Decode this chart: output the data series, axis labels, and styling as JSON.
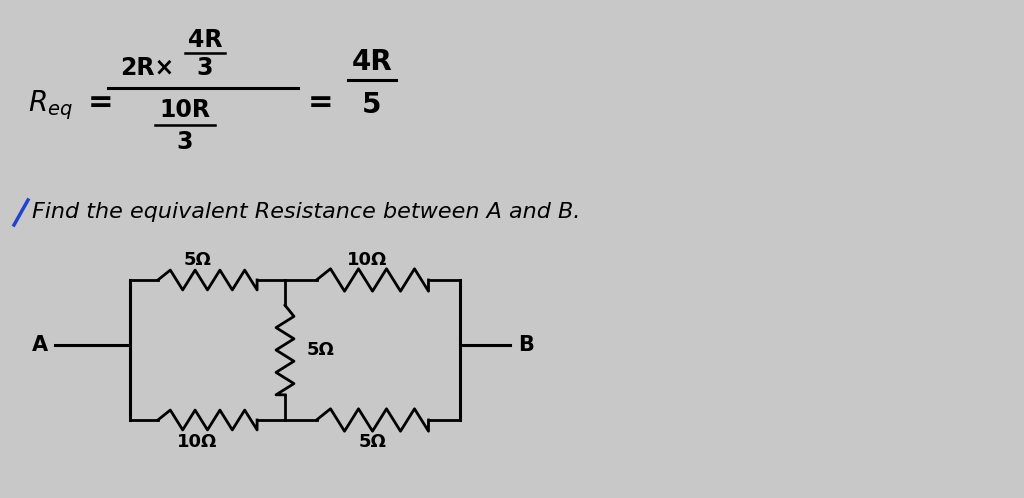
{
  "bg_color": "#c8c8c8",
  "text_color": "#000000",
  "line_color": "#000000",
  "circuit_text": "Find the equivalent Resistance between A and B.",
  "resistors": {
    "top_left": "5Ω",
    "top_right": "10Ω",
    "middle": "5Ω",
    "bottom_left": "10Ω",
    "bottom_right": "5Ω"
  },
  "node_A": "A",
  "node_B": "B",
  "formula": {
    "Req_label": "$R_{eq}$",
    "num_left": "2R×",
    "frac_small_num": "4R",
    "frac_small_den": "3",
    "main_den_num": "10R",
    "main_den_den": "3",
    "result_num": "4R",
    "result_den": "5"
  }
}
